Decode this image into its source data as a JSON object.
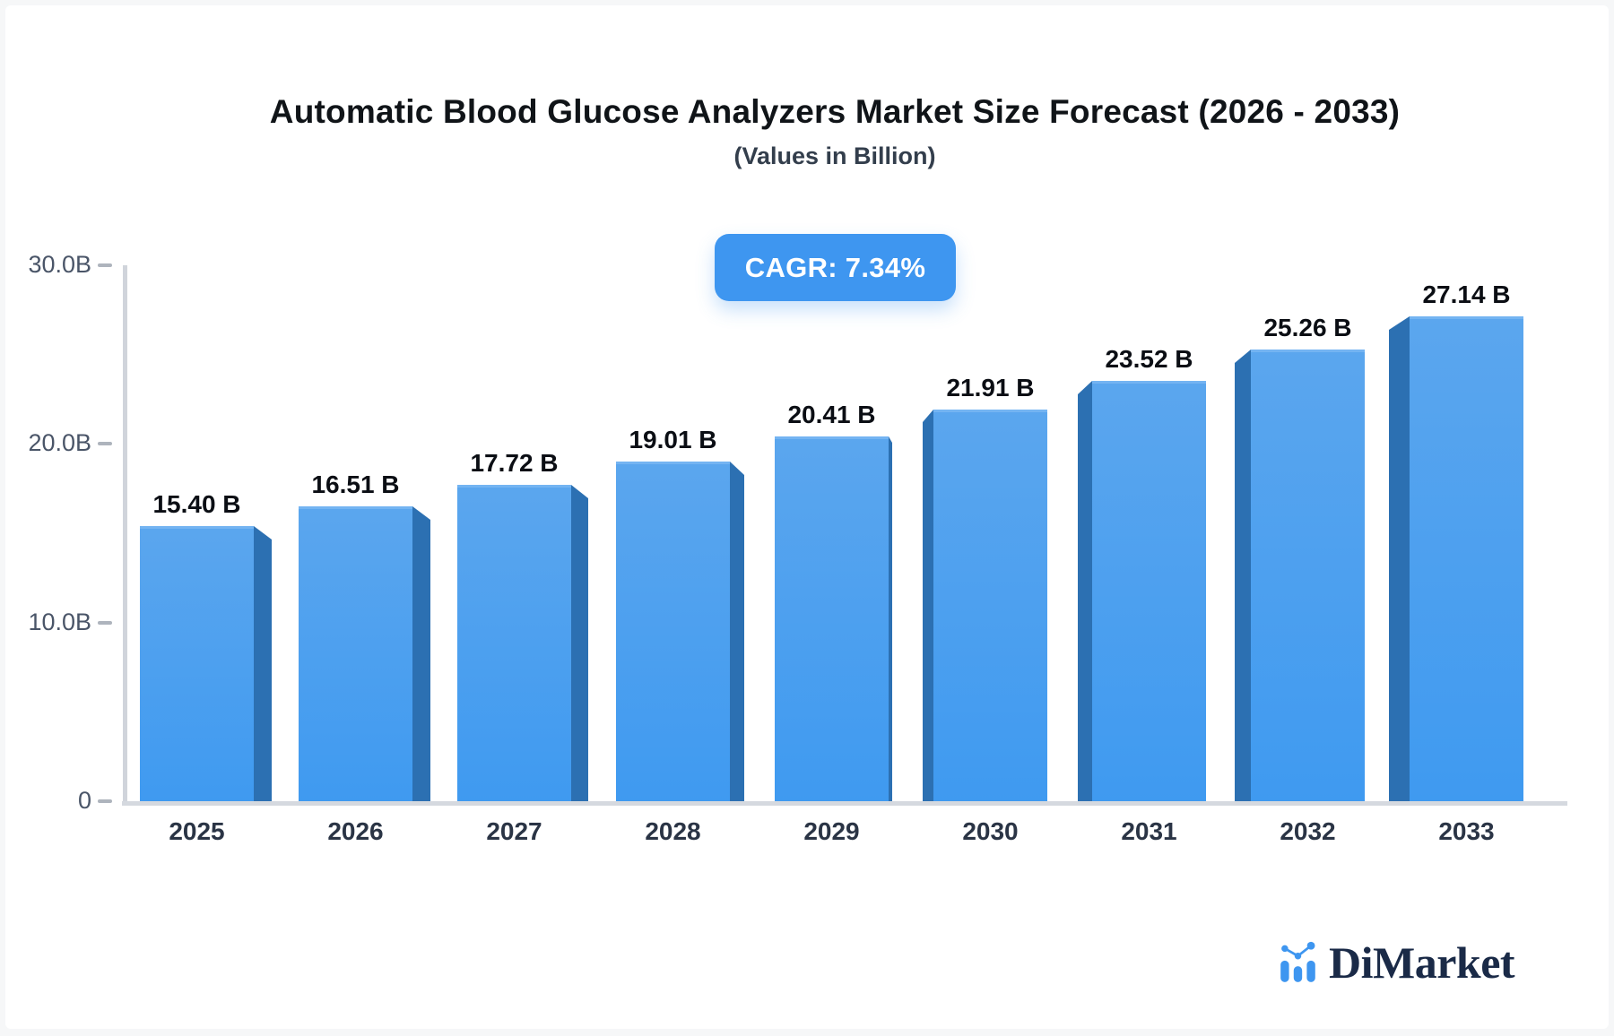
{
  "header": {
    "title": "Automatic Blood Glucose Analyzers Market Size Forecast (2026 - 2033)",
    "subtitle": "(Values in Billion)",
    "cagr_badge": "CAGR: 7.34%"
  },
  "chart_data": {
    "type": "bar",
    "title": "Automatic Blood Glucose Analyzers Market Size Forecast (2026 - 2033)",
    "subtitle": "(Values in Billion)",
    "annotation": "CAGR: 7.34%",
    "categories": [
      "2025",
      "2026",
      "2027",
      "2028",
      "2029",
      "2030",
      "2031",
      "2032",
      "2033"
    ],
    "values": [
      15.4,
      16.51,
      17.72,
      19.01,
      20.41,
      21.91,
      23.52,
      25.26,
      27.14
    ],
    "value_labels": [
      "15.40 B",
      "16.51 B",
      "17.72 B",
      "19.01 B",
      "20.41 B",
      "21.91 B",
      "23.52 B",
      "25.26 B",
      "27.14 B"
    ],
    "ylim": [
      0,
      30
    ],
    "yticks": [
      {
        "value": 30,
        "label": "30.0B"
      },
      {
        "value": 20,
        "label": "20.0B"
      },
      {
        "value": 10,
        "label": "10.0B"
      },
      {
        "value": 0,
        "label": "0"
      }
    ],
    "grid": false,
    "legend": false,
    "bar_colors": {
      "face_top": "#5ba6ee",
      "face_bottom": "#3f9af0",
      "side": "#2c70b2",
      "top_highlight": "#74b4f2"
    }
  },
  "branding": {
    "logo_text": "DiMarket",
    "logo_icon": "bar-chart-icon",
    "icon_color": "#3e96f0",
    "text_color": "#1a2a47"
  }
}
